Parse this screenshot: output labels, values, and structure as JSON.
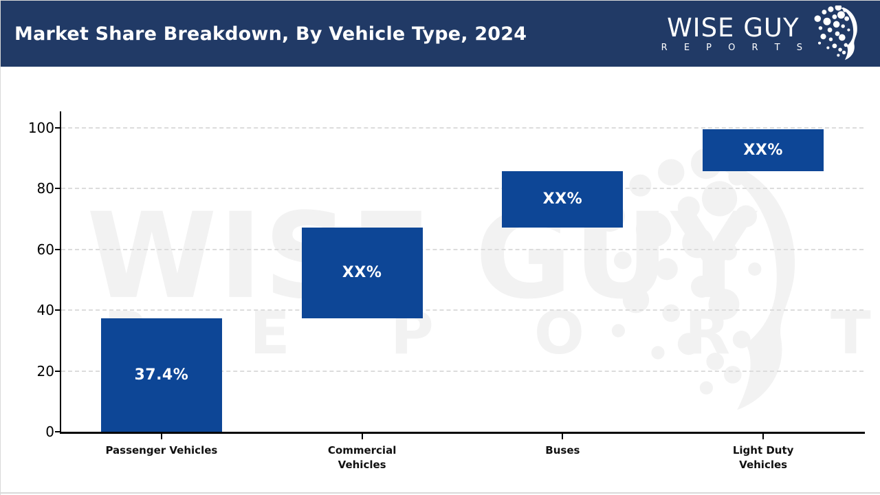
{
  "header": {
    "title": "Market Share Breakdown, By Vehicle Type, 2024",
    "logo": {
      "word": "WISE GUY",
      "sub": "R E P O R T S"
    },
    "bg_color": "#213a66"
  },
  "watermark": {
    "line1": "WISE GUY",
    "line2": "R E P O R T S"
  },
  "chart_data": {
    "type": "bar",
    "subtype": "waterfall",
    "title": "Market Share Breakdown, By Vehicle Type, 2024",
    "categories": [
      "Passenger Vehicles",
      "Commercial\nVehicles",
      "Buses",
      "Light Duty\nVehicles"
    ],
    "segments": [
      {
        "category": "Passenger Vehicles",
        "start": 0,
        "end": 37.4,
        "label": "37.4%"
      },
      {
        "category": "Commercial Vehicles",
        "start": 37.4,
        "end": 67.3,
        "label": "XX%"
      },
      {
        "category": "Buses",
        "start": 67.3,
        "end": 85.8,
        "label": "XX%"
      },
      {
        "category": "Light Duty Vehicles",
        "start": 85.8,
        "end": 99.6,
        "label": "XX%"
      }
    ],
    "ylim": [
      0,
      100
    ],
    "yticks": [
      0,
      20,
      40,
      60,
      80,
      100
    ],
    "xlabel": "",
    "ylabel": "",
    "grid": "horizontal-dashed",
    "legend": false,
    "bar_color": "#0d4696",
    "bar_label_color": "#ffffff"
  }
}
